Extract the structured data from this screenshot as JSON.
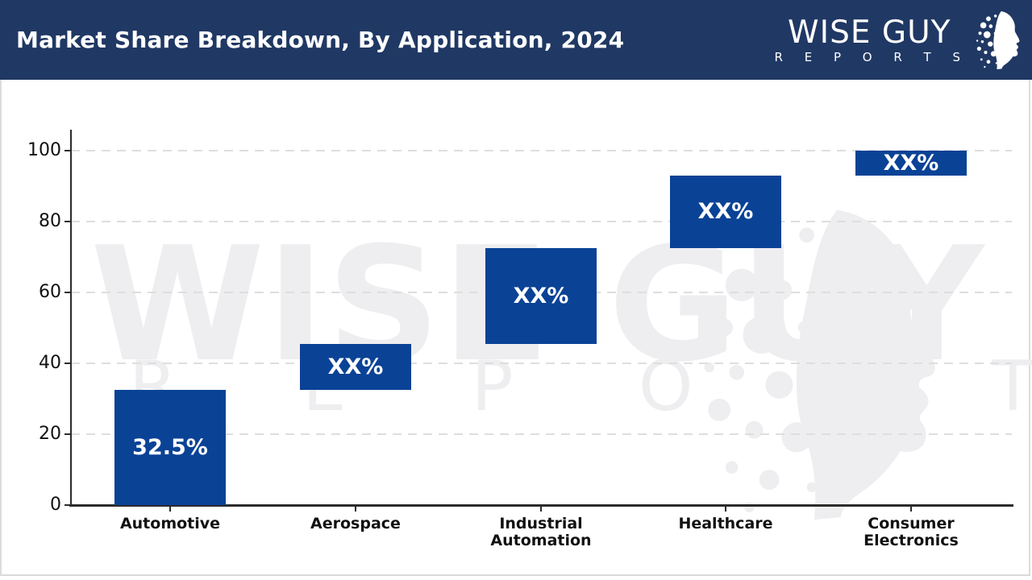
{
  "header": {
    "title": "Market Share Breakdown, By Application, 2024",
    "logo": {
      "name": "WISE GUY REPORTS",
      "line1": "WISE GUY",
      "line2": "R E P O R T S"
    }
  },
  "watermark": {
    "line1": "WISE GUY",
    "line2": "R E P O R T S"
  },
  "chart_data": {
    "type": "bar",
    "variant": "waterfall",
    "title": "Market Share Breakdown, By Application, 2024",
    "xlabel": "",
    "ylabel": "",
    "ylim": [
      0,
      105
    ],
    "yticks": [
      0,
      20,
      40,
      60,
      80,
      100
    ],
    "grid": {
      "axis": "y",
      "style": "dashed",
      "color": "#dedede"
    },
    "legend": "none",
    "categories": [
      {
        "name": "Automotive",
        "lines": [
          "Automotive"
        ]
      },
      {
        "name": "Aerospace",
        "lines": [
          "Aerospace"
        ]
      },
      {
        "name": "Industrial Automation",
        "lines": [
          "Industrial",
          "Automation"
        ]
      },
      {
        "name": "Healthcare",
        "lines": [
          "Healthcare"
        ]
      },
      {
        "name": "Consumer Electronics",
        "lines": [
          "Consumer",
          "Electronics"
        ]
      }
    ],
    "series": [
      {
        "name": "Market Share (%)",
        "points": [
          {
            "category": "Automotive",
            "start": 0,
            "end": 32.5,
            "label": "32.5%"
          },
          {
            "category": "Aerospace",
            "start": 32.5,
            "end": 45.5,
            "label": "XX%"
          },
          {
            "category": "Industrial Automation",
            "start": 45.5,
            "end": 72.5,
            "label": "XX%"
          },
          {
            "category": "Healthcare",
            "start": 72.5,
            "end": 93,
            "label": "XX%"
          },
          {
            "category": "Consumer Electronics",
            "start": 93,
            "end": 100,
            "label": "XX%"
          }
        ]
      }
    ],
    "bar_color": "#0a4296",
    "bar_label_color": "#ffffff"
  },
  "colors": {
    "header_bg": "#203864",
    "header_text": "#ffffff",
    "axis": "#2b2b2b",
    "tick_label": "#111111",
    "watermark": "#eeeef0",
    "frame": "#d9d9d9"
  }
}
